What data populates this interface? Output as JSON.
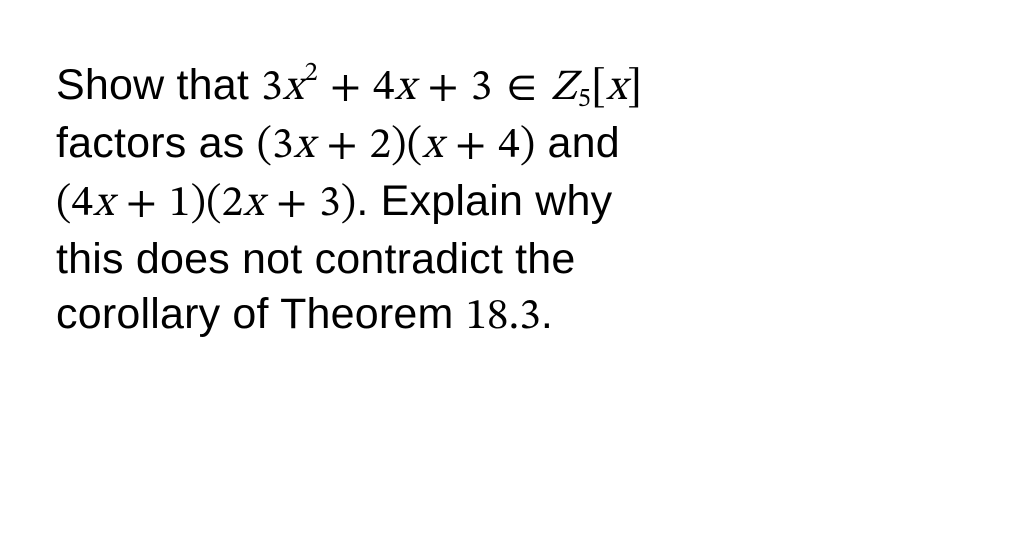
{
  "colors": {
    "background": "#ffffff",
    "text": "#000000"
  },
  "typography": {
    "body_font_family": "Arial, Helvetica, sans-serif",
    "math_font_family": "Cambria Math, STIX Two Math, Latin Modern Math, Times New Roman, serif",
    "font_size_pt": 32,
    "line_height": 1.28
  },
  "problem": {
    "t1": "Show that ",
    "poly": {
      "a_coef": "3",
      "a_var": "x",
      "a_exp": "2",
      "op1": "+",
      "b_coef": "4",
      "b_var": "x",
      "op2": "+",
      "c": "3"
    },
    "in_symbol": "∈",
    "ring": {
      "Z": "Z",
      "sub": "5",
      "lbrack": "[",
      "var": "x",
      "rbrack": "]"
    },
    "t2": "factors as ",
    "factor1": {
      "lp1": "(",
      "a1": "3",
      "v1": "x",
      "op1": "+",
      "b1": "2",
      "rp1": ")",
      "lp2": "(",
      "v2": "x",
      "op2": "+",
      "b2": "4",
      "rp2": ")"
    },
    "t3": " and",
    "factor2": {
      "lp1": "(",
      "a1": "4",
      "v1": "x",
      "op1": "+",
      "b1": "1",
      "rp1": ")",
      "lp2": "(",
      "a2": "2",
      "v2": "x",
      "op2": "+",
      "b2": "3",
      "rp2": ")"
    },
    "t4": ". Explain why",
    "t5": "this does not contradict the",
    "t6": "corollary of Theorem ",
    "thm_num": "18.3",
    "period": "."
  }
}
